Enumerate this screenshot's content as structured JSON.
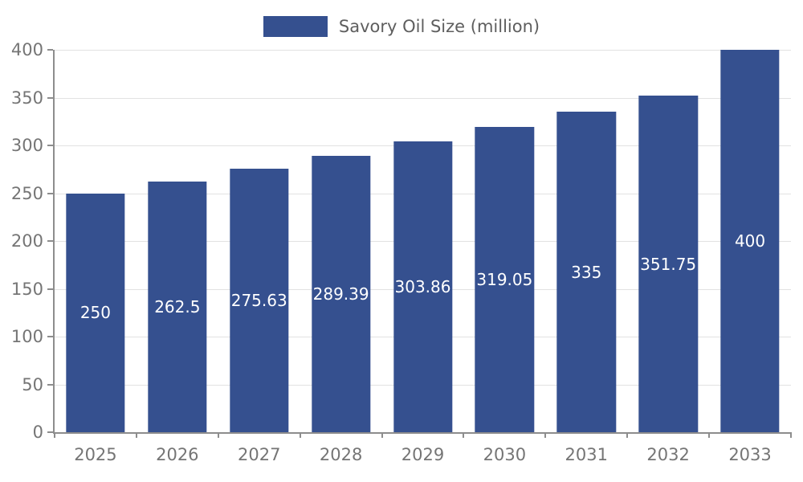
{
  "chart_data": {
    "type": "bar",
    "title": "Savory Oil Size (million)",
    "categories": [
      "2025",
      "2026",
      "2027",
      "2028",
      "2029",
      "2030",
      "2031",
      "2032",
      "2033"
    ],
    "series": [
      {
        "name": "Savory Oil Size (million)",
        "values": [
          250,
          262.5,
          275.63,
          289.39,
          303.86,
          319.05,
          335,
          351.75,
          400
        ]
      }
    ],
    "value_labels": [
      "250",
      "262.5",
      "275.63",
      "289.39",
      "303.86",
      "319.05",
      "335",
      "351.75",
      "400"
    ],
    "xlabel": "",
    "ylabel": "",
    "ylim": [
      0,
      400
    ],
    "yticks": [
      0,
      50,
      100,
      150,
      200,
      250,
      300,
      350,
      400
    ],
    "grid": true,
    "legend_position": "top",
    "bar_color": "#35508f"
  },
  "colors": {
    "bar": "#35508f",
    "axis": "#8d8d8d",
    "gridline": "#e2e2e2",
    "tick_text": "#757575",
    "legend_text": "#5e5e5e",
    "bar_label_text": "#ffffff",
    "background": "#ffffff"
  }
}
